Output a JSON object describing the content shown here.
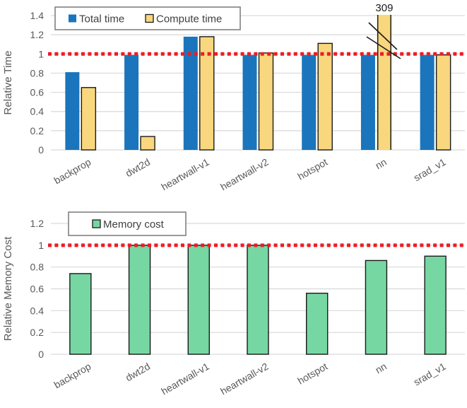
{
  "figure": {
    "background": "#FFFFFF",
    "colors": {
      "grid": "#D9D9D9",
      "axis_text": "#595959",
      "legend_text": "#404040",
      "legend_border": "#808080",
      "reference_line": "#ED1C24",
      "bar_border": "#1A1A1A"
    }
  },
  "chart_data": [
    {
      "type": "bar",
      "name": "relative-time-chart",
      "categories": [
        "backprop",
        "dwt2d",
        "heartwall-v1",
        "heartwall-v2",
        "hotspot",
        "nn",
        "srad_v1"
      ],
      "series": [
        {
          "name": "Total time",
          "color": "#1B75BC",
          "border": false,
          "values": [
            0.81,
            0.99,
            1.18,
            0.99,
            0.99,
            0.99,
            0.99
          ]
        },
        {
          "name": "Compute time",
          "color": "#F9D77E",
          "border": true,
          "values": [
            0.65,
            0.14,
            1.18,
            1.01,
            1.11,
            309,
            0.99
          ]
        }
      ],
      "ylabel": "Relative Time",
      "ylim": [
        0,
        1.4
      ],
      "ytick_labels": [
        "0",
        "0.2",
        "0.4",
        "0.6",
        "0.8",
        "1",
        "1.2",
        "1.4"
      ],
      "reference_line": 1.0,
      "grid": true,
      "legend_position": "top-left",
      "annotation": {
        "text": "309",
        "category": "nn",
        "series": "Compute time",
        "meaning": "bar exceeds axis range; drawn clipped with axis break marks"
      }
    },
    {
      "type": "bar",
      "name": "relative-memory-cost-chart",
      "categories": [
        "backprop",
        "dwt2d",
        "heartwall-v1",
        "heartwall-v2",
        "hotspot",
        "nn",
        "srad_v1"
      ],
      "series": [
        {
          "name": "Memory cost",
          "color": "#76D7A2",
          "border": true,
          "values": [
            0.74,
            1.0,
            1.0,
            1.0,
            0.56,
            0.86,
            0.9
          ]
        }
      ],
      "ylabel": "Relative Memory Cost",
      "ylim": [
        0,
        1.2
      ],
      "ytick_labels": [
        "0",
        "0.2",
        "0.4",
        "0.6",
        "0.8",
        "1",
        "1.2"
      ],
      "reference_line": 1.0,
      "grid": true,
      "legend_position": "top-left"
    }
  ]
}
